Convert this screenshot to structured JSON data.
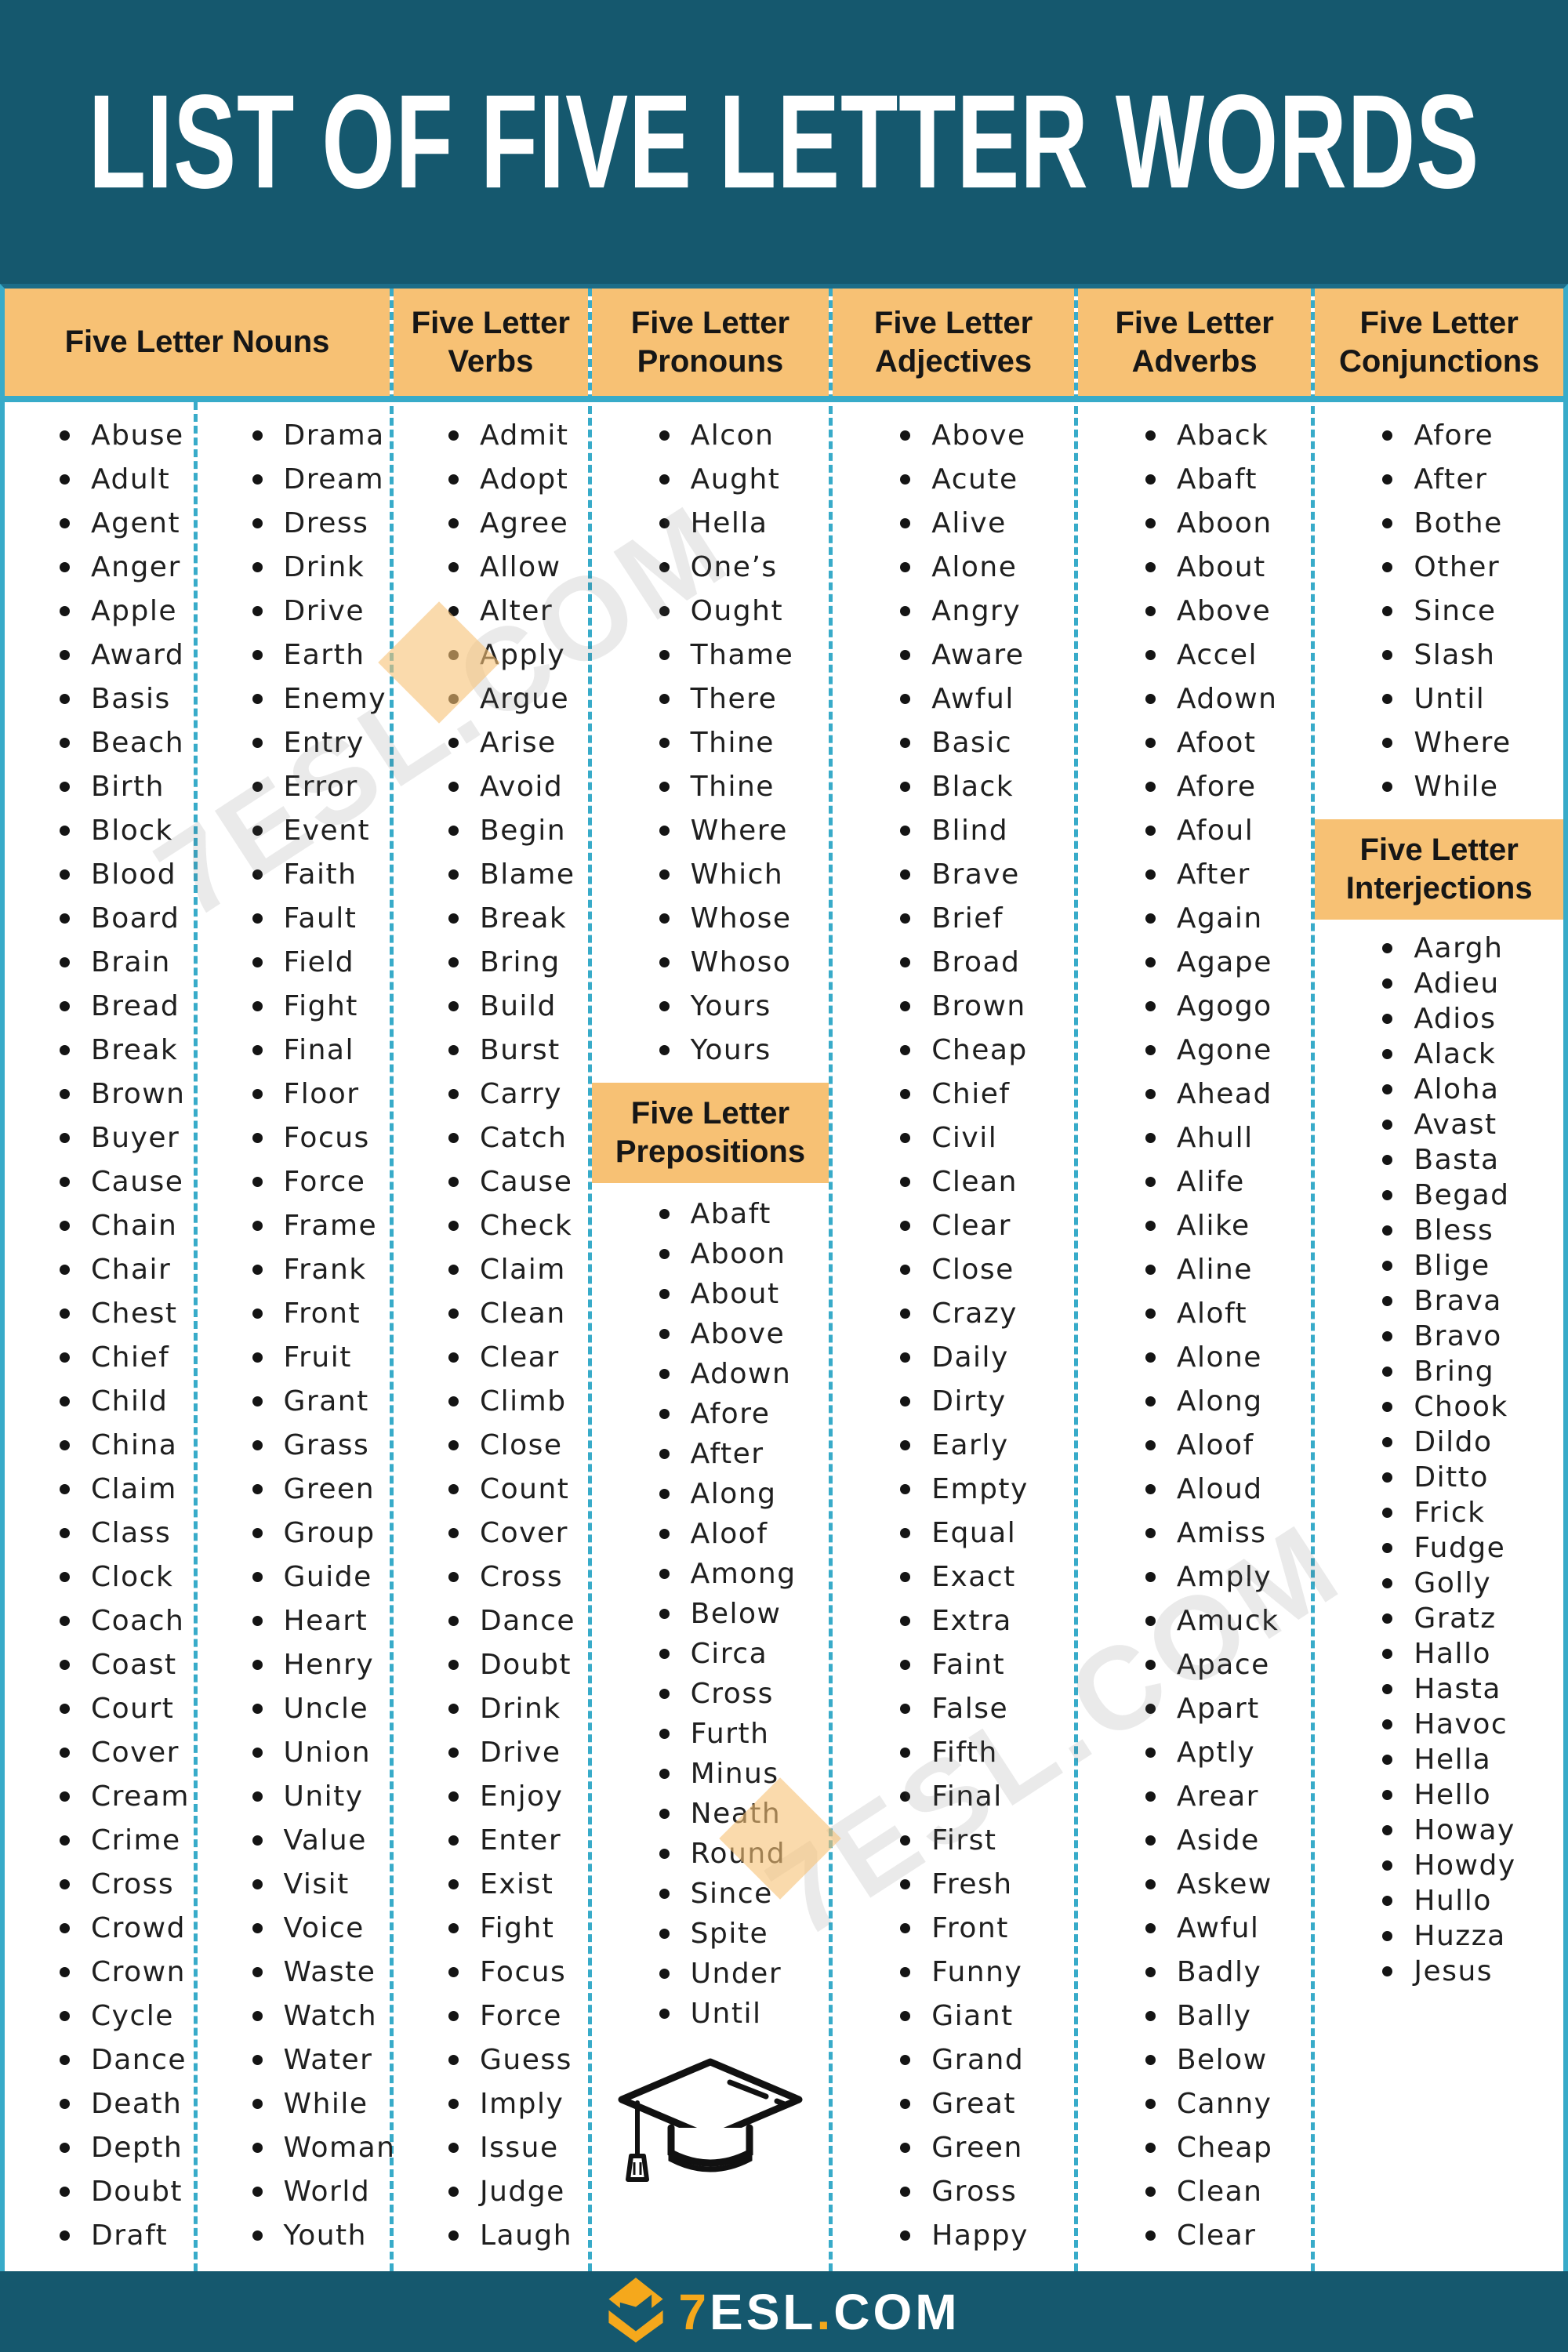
{
  "title": "LIST OF FIVE LETTER WORDS",
  "watermark_text": "7ESL.COM",
  "colors": {
    "background_teal": "#15586e",
    "header_band_orange": "#f7c174",
    "divider_cyan": "#38abc9",
    "word_text": "#1f1f1f",
    "logo_orange": "#f5a81c",
    "title_white": "#ffffff"
  },
  "footer": {
    "brand_7": "7",
    "brand_esl": "ESL",
    "brand_dot": ".",
    "brand_com": "COM"
  },
  "columns": {
    "nouns": {
      "header": "Five Letter Nouns",
      "col1": [
        "Abuse",
        "Adult",
        "Agent",
        "Anger",
        "Apple",
        "Award",
        "Basis",
        "Beach",
        "Birth",
        "Block",
        "Blood",
        "Board",
        "Brain",
        "Bread",
        "Break",
        "Brown",
        "Buyer",
        "Cause",
        "Chain",
        "Chair",
        "Chest",
        "Chief",
        "Child",
        "China",
        "Claim",
        "Class",
        "Clock",
        "Coach",
        "Coast",
        "Court",
        "Cover",
        "Cream",
        "Crime",
        "Cross",
        "Crowd",
        "Crown",
        "Cycle",
        "Dance",
        "Death",
        "Depth",
        "Doubt",
        "Draft"
      ],
      "col2": [
        "Drama",
        "Dream",
        "Dress",
        "Drink",
        "Drive",
        "Earth",
        "Enemy",
        "Entry",
        "Error",
        "Event",
        "Faith",
        "Fault",
        "Field",
        "Fight",
        "Final",
        "Floor",
        "Focus",
        "Force",
        "Frame",
        "Frank",
        "Front",
        "Fruit",
        "Grant",
        "Grass",
        "Green",
        "Group",
        "Guide",
        "Heart",
        "Henry",
        "Uncle",
        "Union",
        "Unity",
        "Value",
        "Visit",
        "Voice",
        "Waste",
        "Watch",
        "Water",
        "While",
        "Woman",
        "World",
        "Youth"
      ]
    },
    "verbs": {
      "header": "Five Letter Verbs",
      "words": [
        "Admit",
        "Adopt",
        "Agree",
        "Allow",
        "Alter",
        "Apply",
        "Argue",
        "Arise",
        "Avoid",
        "Begin",
        "Blame",
        "Break",
        "Bring",
        "Build",
        "Burst",
        "Carry",
        "Catch",
        "Cause",
        "Check",
        "Claim",
        "Clean",
        "Clear",
        "Climb",
        "Close",
        "Count",
        "Cover",
        "Cross",
        "Dance",
        "Doubt",
        "Drink",
        "Drive",
        "Enjoy",
        "Enter",
        "Exist",
        "Fight",
        "Focus",
        "Force",
        "Guess",
        "Imply",
        "Issue",
        "Judge",
        "Laugh"
      ]
    },
    "pronouns": {
      "header": "Five Letter Pronouns",
      "words": [
        "Alcon",
        "Aught",
        "Hella",
        "One’s",
        "Ought",
        "Thame",
        "There",
        "Thine",
        "Thine",
        "Where",
        "Which",
        "Whose",
        "Whoso",
        "Yours",
        "Yours"
      ]
    },
    "prepositions": {
      "header": "Five Letter Prepositions",
      "words": [
        "Abaft",
        "Aboon",
        "About",
        "Above",
        "Adown",
        "Afore",
        "After",
        "Along",
        "Aloof",
        "Among",
        "Below",
        "Circa",
        "Cross",
        "Furth",
        "Minus",
        "Neath",
        "Round",
        "Since",
        "Spite",
        "Under",
        "Until"
      ]
    },
    "adjectives": {
      "header": "Five Letter Adjectives",
      "words": [
        "Above",
        "Acute",
        "Alive",
        "Alone",
        "Angry",
        "Aware",
        "Awful",
        "Basic",
        "Black",
        "Blind",
        "Brave",
        "Brief",
        "Broad",
        "Brown",
        "Cheap",
        "Chief",
        "Civil",
        "Clean",
        "Clear",
        "Close",
        "Crazy",
        "Daily",
        "Dirty",
        "Early",
        "Empty",
        "Equal",
        "Exact",
        "Extra",
        "Faint",
        "False",
        "Fifth",
        "Final",
        "First",
        "Fresh",
        "Front",
        "Funny",
        "Giant",
        "Grand",
        "Great",
        "Green",
        "Gross",
        "Happy"
      ]
    },
    "adverbs": {
      "header": "Five Letter Adverbs",
      "words": [
        "Aback",
        "Abaft",
        "Aboon",
        "About",
        "Above",
        "Accel",
        "Adown",
        "Afoot",
        "Afore",
        "Afoul",
        "After",
        "Again",
        "Agape",
        "Agogo",
        "Agone",
        "Ahead",
        "Ahull",
        "Alife",
        "Alike",
        "Aline",
        "Aloft",
        "Alone",
        "Along",
        "Aloof",
        "Aloud",
        "Amiss",
        "Amply",
        "Amuck",
        "Apace",
        "Apart",
        "Aptly",
        "Arear",
        "Aside",
        "Askew",
        "Awful",
        "Badly",
        "Bally",
        "Below",
        "Canny",
        "Cheap",
        "Clean",
        "Clear"
      ]
    },
    "conjunctions": {
      "header": "Five Letter Conjunctions",
      "words": [
        "Afore",
        "After",
        "Bothe",
        "Other",
        "Since",
        "Slash",
        "Until",
        "Where",
        "While"
      ]
    },
    "interjections": {
      "header": "Five Letter Interjections",
      "words": [
        "Aargh",
        "Adieu",
        "Adios",
        "Alack",
        "Aloha",
        "Avast",
        "Basta",
        "Begad",
        "Bless",
        "Blige",
        "Brava",
        "Bravo",
        "Bring",
        "Chook",
        "Dildo",
        "Ditto",
        "Frick",
        "Fudge",
        "Golly",
        "Gratz",
        "Hallo",
        "Hasta",
        "Havoc",
        "Hella",
        "Hello",
        "Howay",
        "Howdy",
        "Hullo",
        "Huzza",
        "Jesus"
      ]
    }
  }
}
